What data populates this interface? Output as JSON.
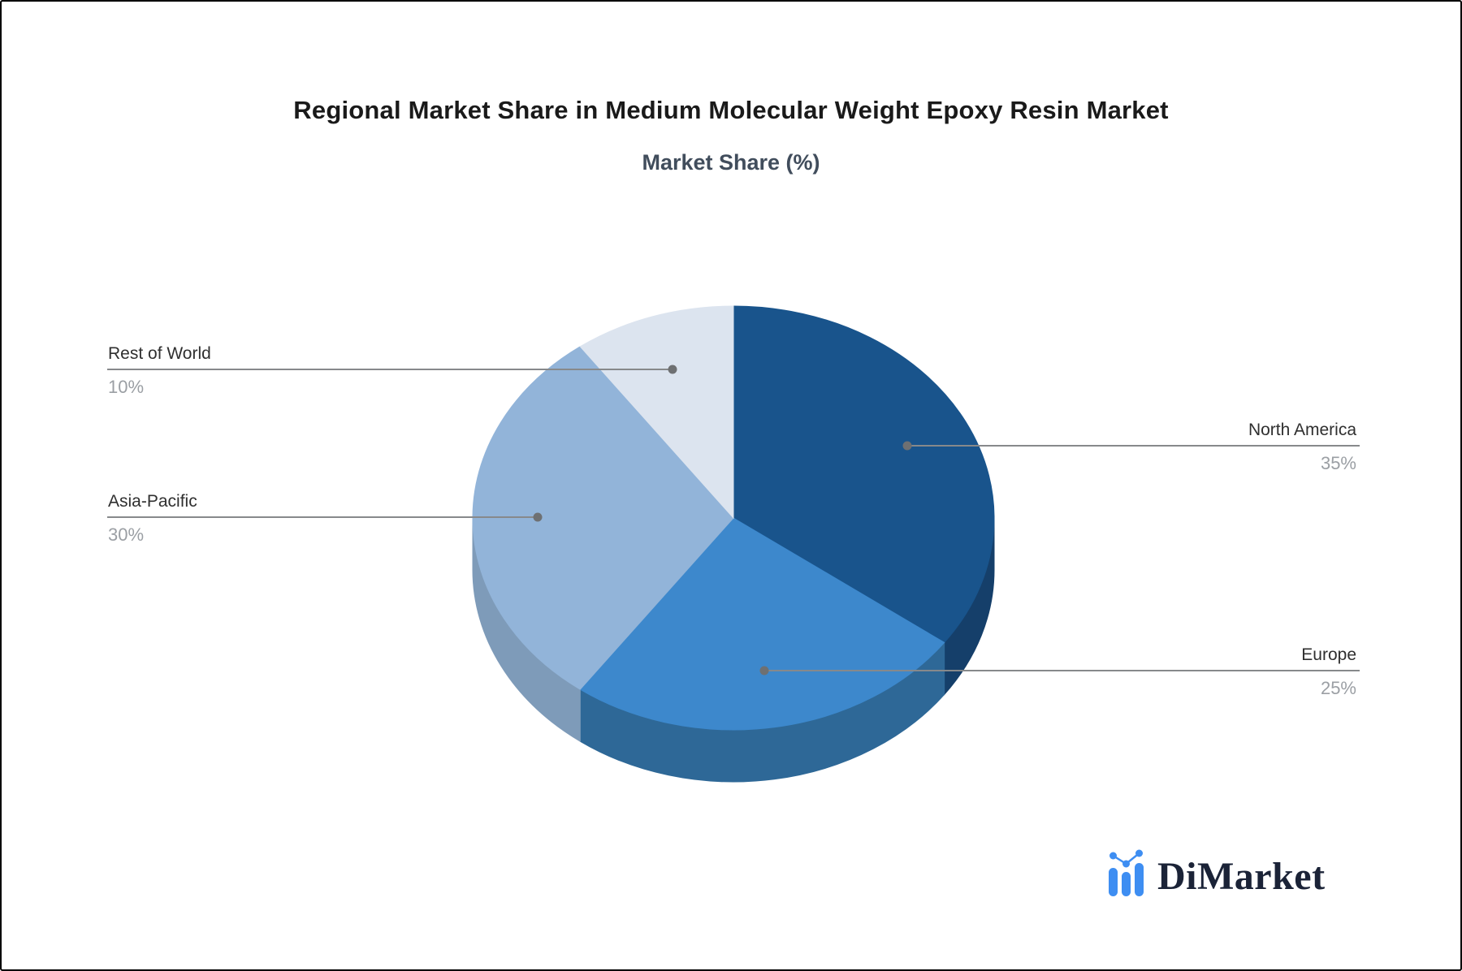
{
  "chart_data": {
    "type": "pie",
    "title": "Regional Market Share in Medium Molecular Weight Epoxy Resin Market",
    "subtitle": "Market Share (%)",
    "unit": "%",
    "effect": "3d",
    "start_angle_deg": 0,
    "clockwise": true,
    "legend_position": "none",
    "slices": [
      {
        "label": "North America",
        "value": 35,
        "pct_label": "35%",
        "color": "#19548C",
        "side_color": "#153F6A"
      },
      {
        "label": "Europe",
        "value": 25,
        "pct_label": "25%",
        "color": "#3D88CC",
        "side_color": "#2E6897"
      },
      {
        "label": "Asia-Pacific",
        "value": 30,
        "pct_label": "30%",
        "color": "#92B4D9",
        "side_color": "#7E9BB9"
      },
      {
        "label": "Rest of World",
        "value": 10,
        "pct_label": "10%",
        "color": "#DCE4EF",
        "side_color": "#B9C6D8"
      }
    ],
    "label_text_color": "#2F2F2F",
    "pct_text_color": "#9B9FA4",
    "leader_line_color": "#87898B",
    "leader_dot_color": "#6E7072"
  },
  "logo": {
    "text": "DiMarket",
    "icon": "bar-chart-logo-icon",
    "icon_color": "#3E8EF2",
    "text_color": "#1B2337"
  }
}
